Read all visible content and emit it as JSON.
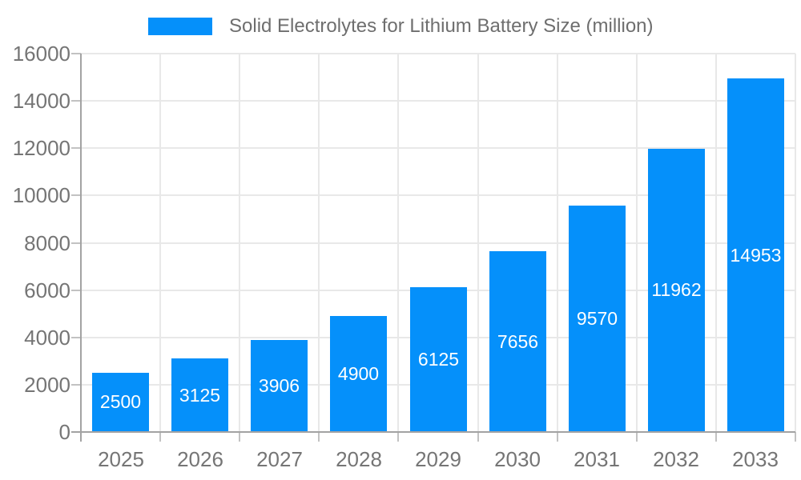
{
  "chart_data": {
    "type": "bar",
    "title": "Solid Electrolytes for Lithium Battery Size (million)",
    "categories": [
      "2025",
      "2026",
      "2027",
      "2028",
      "2029",
      "2030",
      "2031",
      "2032",
      "2033"
    ],
    "values": [
      2500,
      3125,
      3906,
      4900,
      6125,
      7656,
      9570,
      11962,
      14953
    ],
    "xlabel": "",
    "ylabel": "",
    "ylim": [
      0,
      16000
    ],
    "yticks": [
      0,
      2000,
      4000,
      6000,
      8000,
      10000,
      12000,
      14000,
      16000
    ],
    "grid": true,
    "legend_position": "top",
    "value_labels": "inside-center",
    "colors": {
      "bar": "#0590fa",
      "value_label": "#ffffff",
      "tick_label": "#757575",
      "title": "#6e6e6e",
      "gridline": "#e8e8e8",
      "axis_line": "#a3a3a3",
      "tick_mark": "#c2c2c2",
      "background": "#ffffff"
    }
  }
}
